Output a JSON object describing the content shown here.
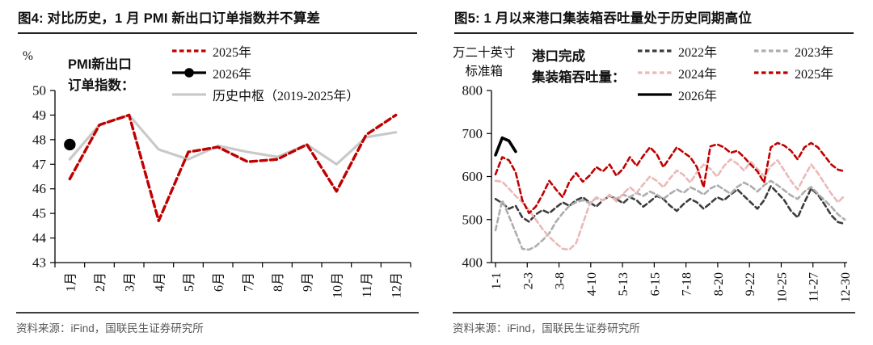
{
  "chart_data": [
    {
      "type": "line",
      "title": "图4: 对比历史，1 月 PMI 新出口订单指数并不算差",
      "unit_label": "%",
      "annotation": "PMI新出口\n订单指数：",
      "categories": [
        "1月",
        "2月",
        "3月",
        "4月",
        "5月",
        "6月",
        "7月",
        "8月",
        "9月",
        "10月",
        "11月",
        "12月"
      ],
      "ylim": [
        43,
        50
      ],
      "yticks": [
        50,
        49,
        48,
        47,
        46,
        45,
        44,
        43
      ],
      "grid": false,
      "legend_position": "top",
      "series": [
        {
          "name": "2025年",
          "color": "#C00000",
          "style": "dashed",
          "values": [
            46.4,
            48.6,
            49.0,
            44.7,
            47.5,
            47.7,
            47.1,
            47.2,
            47.8,
            45.9,
            48.2,
            49.0
          ]
        },
        {
          "name": "2026年",
          "color": "#000000",
          "style": "marker",
          "values": [
            47.8
          ]
        },
        {
          "name": "历史中枢（2019-2025年）",
          "color": "#C9C9C9",
          "style": "solid",
          "values": [
            47.2,
            48.6,
            49.0,
            47.6,
            47.2,
            47.75,
            47.5,
            47.3,
            47.8,
            47.0,
            48.1,
            48.3
          ]
        }
      ],
      "source": "资料来源：iFind，国联民生证券研究所"
    },
    {
      "type": "line",
      "title": "图5: 1 月以来港口集装箱吞吐量处于历史同期高位",
      "unit_label": "万二十英寸\n标准箱",
      "annotation": "港口完成\n集装箱吞吐量：",
      "xticklabels": [
        "1-1",
        "2-3",
        "3-8",
        "4-10",
        "5-13",
        "6-15",
        "7-18",
        "8-20",
        "9-22",
        "10-25",
        "11-27",
        "12-30"
      ],
      "ylim": [
        400,
        800
      ],
      "yticks": [
        800,
        700,
        600,
        500,
        400
      ],
      "grid": false,
      "legend_position": "top",
      "series": [
        {
          "name": "2022年",
          "color": "#3D3D3D",
          "style": "dashed",
          "values": [
            548,
            538,
            525,
            532,
            505,
            495,
            512,
            522,
            515,
            528,
            540,
            532,
            545,
            552,
            540,
            530,
            545,
            555,
            548,
            538,
            552,
            545,
            530,
            542,
            555,
            548,
            532,
            520,
            536,
            548,
            540,
            525,
            538,
            552,
            545,
            558,
            570,
            555,
            540,
            525,
            545,
            578,
            562,
            545,
            520,
            505,
            540,
            572,
            558,
            535,
            510,
            494,
            490
          ]
        },
        {
          "name": "2023年",
          "color": "#ADADAD",
          "style": "dashed",
          "values": [
            475,
            545,
            508,
            470,
            432,
            430,
            438,
            452,
            468,
            495,
            515,
            532,
            540,
            545,
            538,
            550,
            545,
            556,
            548,
            558,
            552,
            562,
            555,
            565,
            558,
            548,
            560,
            570,
            562,
            575,
            568,
            558,
            572,
            580,
            570,
            560,
            576,
            586,
            578,
            565,
            580,
            590,
            580,
            568,
            556,
            548,
            565,
            576,
            560,
            545,
            530,
            512,
            500
          ]
        },
        {
          "name": "2024年",
          "color": "#EBB9B9",
          "style": "dashed",
          "values": [
            590,
            588,
            572,
            555,
            540,
            522,
            500,
            478,
            460,
            445,
            432,
            430,
            445,
            490,
            535,
            552,
            545,
            558,
            542,
            560,
            575,
            562,
            582,
            600,
            590,
            575,
            596,
            614,
            604,
            586,
            610,
            628,
            618,
            600,
            624,
            640,
            630,
            614,
            634,
            618,
            600,
            624,
            638,
            614,
            590,
            570,
            600,
            628,
            608,
            584,
            560,
            540,
            556
          ]
        },
        {
          "name": "2025年",
          "color": "#C00000",
          "style": "dashed",
          "values": [
            605,
            645,
            638,
            610,
            545,
            515,
            530,
            558,
            590,
            570,
            552,
            588,
            608,
            588,
            602,
            622,
            612,
            628,
            602,
            618,
            645,
            625,
            648,
            668,
            652,
            622,
            645,
            668,
            656,
            645,
            622,
            575,
            670,
            675,
            668,
            655,
            660,
            645,
            628,
            612,
            586,
            668,
            678,
            672,
            660,
            640,
            668,
            678,
            668,
            648,
            628,
            616,
            612
          ]
        },
        {
          "name": "2026年",
          "color": "#000000",
          "style": "solid",
          "values": [
            650,
            690,
            683,
            658
          ]
        }
      ],
      "source": "资料来源：iFind，国联民生证券研究所"
    }
  ]
}
